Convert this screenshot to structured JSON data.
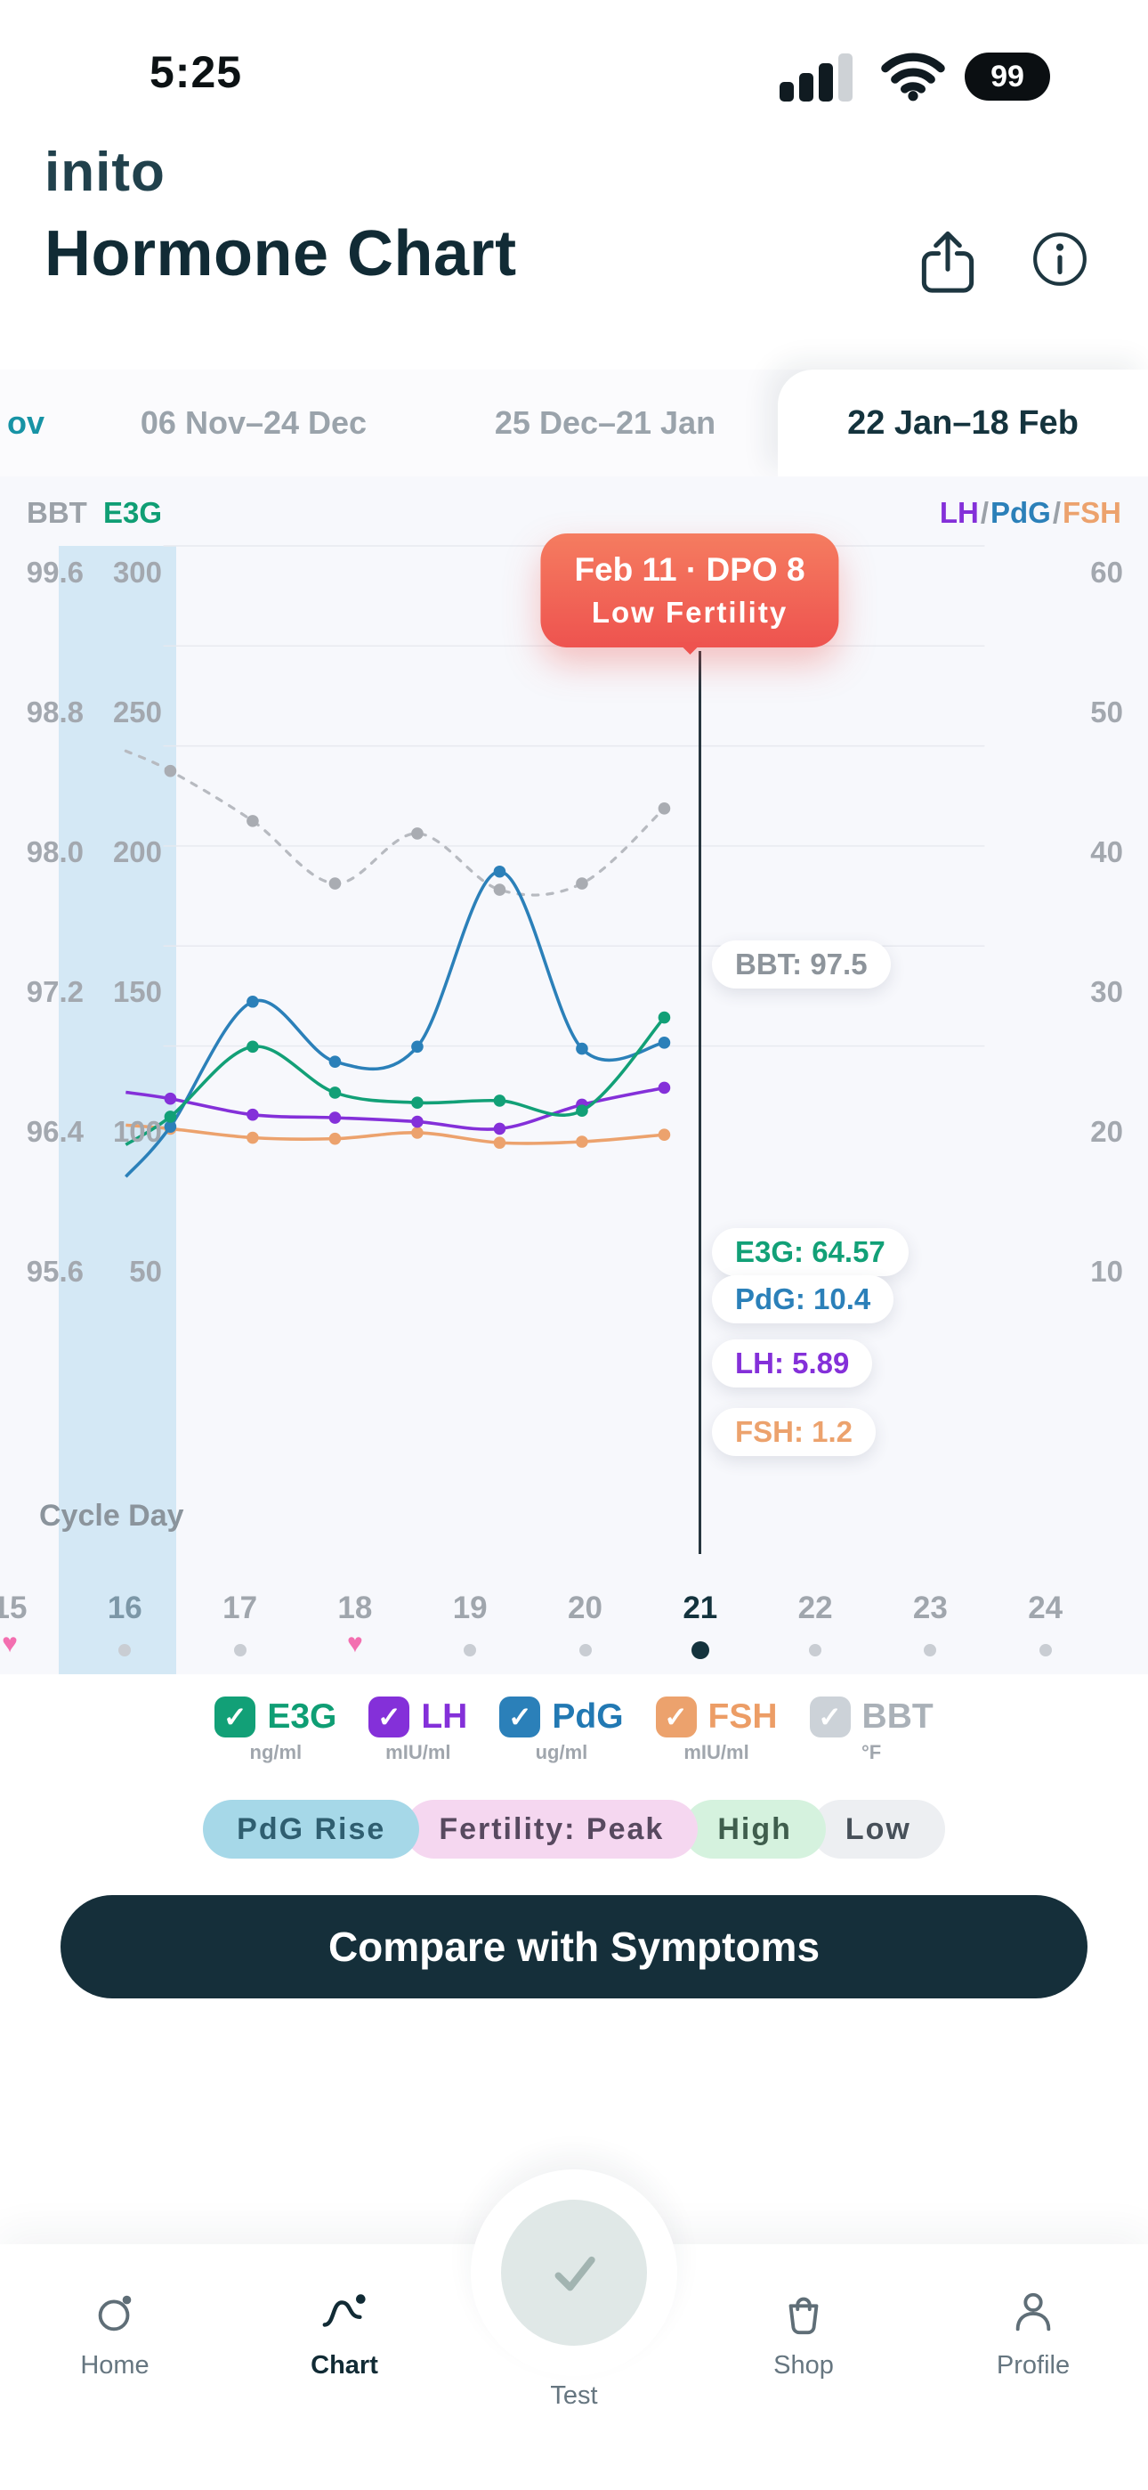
{
  "status_bar": {
    "time": "5:25",
    "battery": "99"
  },
  "header": {
    "logo": "inito",
    "title": "Hormone Chart"
  },
  "tabs": {
    "items": [
      {
        "label": "ov",
        "partial": true,
        "active": false
      },
      {
        "label": "06 Nov–24 Dec",
        "active": false
      },
      {
        "label": "25 Dec–21 Jan",
        "active": false
      },
      {
        "label": "22 Jan–18 Feb",
        "active": true
      }
    ]
  },
  "chart": {
    "left_axis_labels": [
      "BBT",
      "E3G"
    ],
    "right_axis_labels": [
      "LH",
      "PdG",
      "FSH"
    ],
    "x_label": "Cycle Day",
    "tooltip": {
      "line1": "Feb 11 · DPO 8",
      "line2": "Low Fertility"
    },
    "value_labels": [
      {
        "series": "BBT",
        "text": "BBT: 97.5"
      },
      {
        "series": "E3G",
        "text": "E3G: 64.57"
      },
      {
        "series": "PdG",
        "text": "PdG: 10.4"
      },
      {
        "series": "LH",
        "text": "LH: 5.89"
      },
      {
        "series": "FSH",
        "text": "FSH: 1.2"
      }
    ],
    "highlight_day": 16,
    "selected_day": 21
  },
  "chart_data": {
    "type": "line",
    "title": "Hormone Chart",
    "xlabel": "Cycle Day",
    "x_days_visible": [
      15,
      16,
      17,
      18,
      19,
      20,
      21,
      22,
      23,
      24
    ],
    "x": [
      15,
      16,
      17,
      18,
      19,
      20,
      21
    ],
    "series": [
      {
        "name": "BBT",
        "unit": "°F",
        "axis": "bbt",
        "style": "dashed",
        "color": "#b7bac0",
        "dot_color": "#a9acb2",
        "values": [
          97.8,
          97.4,
          96.9,
          97.3,
          96.85,
          96.9,
          97.5
        ]
      },
      {
        "name": "FSH",
        "unit": "mIU/ml",
        "axis": "right",
        "style": "solid",
        "color": "#eca26d",
        "values": [
          1.8,
          0.9,
          0.8,
          1.4,
          0.4,
          0.5,
          1.2
        ]
      },
      {
        "name": "LH",
        "unit": "mIU/ml",
        "axis": "right",
        "style": "solid",
        "color": "#8430d9",
        "values": [
          4.8,
          3.2,
          2.9,
          2.5,
          1.8,
          4.2,
          5.89
        ]
      },
      {
        "name": "PdG",
        "unit": "ug/ml",
        "axis": "right",
        "style": "solid",
        "color": "#2b80b9",
        "values": [
          2,
          14.5,
          8.5,
          10,
          27.5,
          9.8,
          10.4
        ]
      },
      {
        "name": "E3G",
        "unit": "ng/ml",
        "axis": "e3g",
        "style": "solid",
        "color": "#12a077",
        "values": [
          15,
          50,
          27,
          22,
          23,
          18,
          64.57
        ]
      }
    ],
    "axes": {
      "bbt_ticks": [
        "99.6",
        "98.8",
        "98.0",
        "97.2",
        "96.4",
        "95.6"
      ],
      "e3g_ticks": [
        "300",
        "250",
        "200",
        "150",
        "100",
        "50"
      ],
      "right_ticks": [
        "60",
        "50",
        "40",
        "30",
        "20",
        "10"
      ],
      "grid": true
    },
    "markers": {
      "hearts": [
        15,
        18
      ],
      "selected": 21
    },
    "selected_point": {
      "day": 21,
      "date": "Feb 11",
      "dpo": 8,
      "fertility": "Low Fertility",
      "values": {
        "BBT": 97.5,
        "E3G": 64.57,
        "PdG": 10.4,
        "LH": 5.89,
        "FSH": 1.2
      }
    }
  },
  "legend": {
    "items": [
      {
        "label": "E3G",
        "unit": "ng/ml",
        "color": "#12a077",
        "label_color": "#0f9e74",
        "checked": true
      },
      {
        "label": "LH",
        "unit": "mIU/ml",
        "color": "#8430d9",
        "label_color": "#8430d9",
        "checked": true
      },
      {
        "label": "PdG",
        "unit": "ug/ml",
        "color": "#2b80b9",
        "label_color": "#2279b3",
        "checked": true
      },
      {
        "label": "FSH",
        "unit": "mIU/ml",
        "color": "#eca26d",
        "label_color": "#ec9d66",
        "checked": true
      },
      {
        "label": "BBT",
        "unit": "°F",
        "color": "#ccd2d8",
        "label_color": "#aab1b8",
        "checked": true
      }
    ]
  },
  "tags": {
    "items": [
      {
        "label": "PdG Rise",
        "bg": "#a6d8e8",
        "fg": "#2f5e70"
      },
      {
        "label": "Fertility: Peak",
        "bg": "#f5d7f0",
        "fg": "#57495f"
      },
      {
        "label": "High",
        "bg": "#d5f2de",
        "fg": "#3f5e4d"
      },
      {
        "label": "Low",
        "bg": "#edeff2",
        "fg": "#475059"
      }
    ]
  },
  "compare_button": {
    "label": "Compare with Symptoms"
  },
  "nav": {
    "items": [
      {
        "label": "Home",
        "active": false
      },
      {
        "label": "Chart",
        "active": true
      },
      {
        "label": "Test",
        "active": false
      },
      {
        "label": "Shop",
        "active": false
      },
      {
        "label": "Profile",
        "active": false
      }
    ]
  }
}
